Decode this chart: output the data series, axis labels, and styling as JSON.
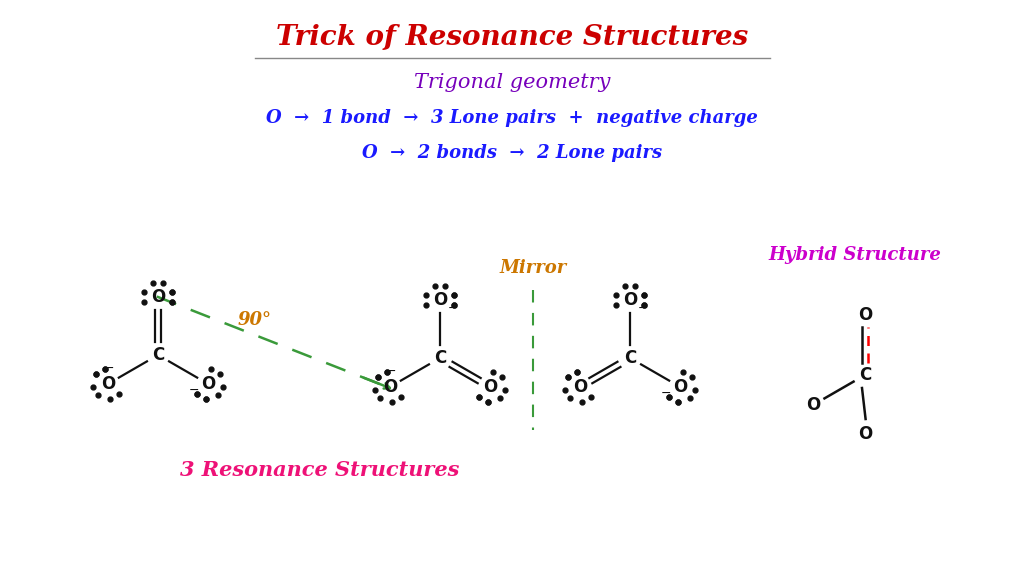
{
  "title": "Trick of Resonance Structures",
  "title_color": "#cc0000",
  "subtitle": "Trigonal geometry",
  "subtitle_color": "#7700bb",
  "line1_parts": [
    "O",
    " → ",
    "1 bond",
    " → ",
    "3 Lone pairs",
    " + ",
    "negative charge"
  ],
  "line2_parts": [
    "O",
    " → ",
    "2 bonds",
    " → ",
    "2 Lone pairs"
  ],
  "lines_color": "#1a1aff",
  "mirror_label": "Mirror",
  "mirror_color": "#cc7700",
  "resonance_label": "3 Resonance Structures",
  "resonance_color": "#ee1177",
  "hybrid_label": "Hybrid Structure",
  "hybrid_color": "#cc00cc",
  "angle_label": "90°",
  "angle_color": "#cc7700",
  "green": "#3a9a3a",
  "black": "#111111"
}
